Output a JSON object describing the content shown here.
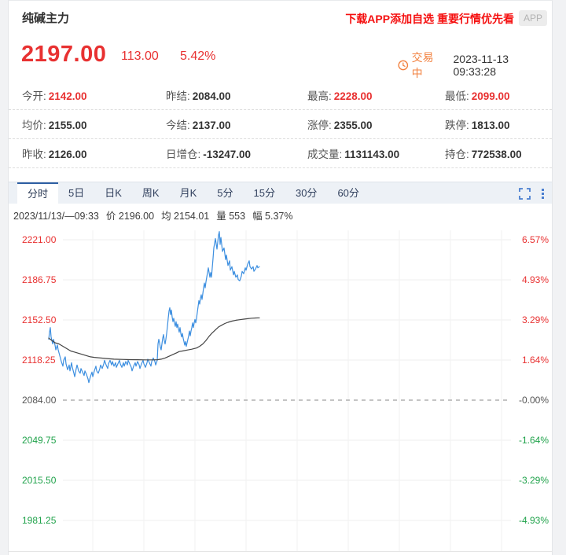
{
  "colors": {
    "up": "#e83131",
    "down": "#1fa24a",
    "neutral": "#555",
    "orange": "#f2813f",
    "promo_red": "#f50f0f",
    "tab_blue": "#2e5fa3",
    "icon_blue": "#4a7fd0",
    "line_blue": "#3d8fe0",
    "line_avg": "#444"
  },
  "header": {
    "title": "纯碱主力",
    "promo": "下载APP添加自选 重要行情优先看",
    "app_badge": "APP"
  },
  "quote": {
    "price": "2197.00",
    "change": "113.00",
    "change_pct": "5.42%",
    "status": "交易中",
    "datetime": "2023-11-13 09:33:28"
  },
  "stats": {
    "rows": [
      [
        {
          "label": "今开:",
          "value": "2142.00",
          "red": true
        },
        {
          "label": "昨结:",
          "value": "2084.00",
          "red": false
        },
        {
          "label": "最高:",
          "value": "2228.00",
          "red": true
        },
        {
          "label": "最低:",
          "value": "2099.00",
          "red": true
        }
      ],
      [
        {
          "label": "均价:",
          "value": "2155.00",
          "red": false
        },
        {
          "label": "今结:",
          "value": "2137.00",
          "red": false
        },
        {
          "label": "涨停:",
          "value": "2355.00",
          "red": false
        },
        {
          "label": "跌停:",
          "value": "1813.00",
          "red": false
        }
      ],
      [
        {
          "label": "昨收:",
          "value": "2126.00",
          "red": false
        },
        {
          "label": "日增仓:",
          "value": "-13247.00",
          "red": false
        },
        {
          "label": "成交量:",
          "value": "1131143.00",
          "red": false
        },
        {
          "label": "持仓:",
          "value": "772538.00",
          "red": false
        }
      ]
    ]
  },
  "tabs": {
    "items": [
      "分时",
      "5日",
      "日K",
      "周K",
      "月K",
      "5分",
      "15分",
      "30分",
      "60分"
    ],
    "active_index": 0
  },
  "info_line": {
    "segments": [
      "2023/11/13/—09:33",
      "价 2196.00",
      "均 2154.01",
      "量 553",
      "幅 5.37%"
    ]
  },
  "chart_data": {
    "type": "line",
    "description": "纯碱主力 分时走势图 (intraday price and average lines)",
    "x_axis": "time (night + morning session, up to 09:33)",
    "y_left_ticks": [
      "2221.00",
      "2186.75",
      "2152.50",
      "2118.25",
      "2084.00",
      "2049.75",
      "2015.50",
      "1981.25"
    ],
    "y_left_values": [
      2221.0,
      2186.75,
      2152.5,
      2118.25,
      2084.0,
      2049.75,
      2015.5,
      1981.25
    ],
    "y_right_ticks": [
      "6.57%",
      "4.93%",
      "3.29%",
      "1.64%",
      "-0.00%",
      "-1.64%",
      "-3.29%",
      "-4.93%"
    ],
    "tick_colors": [
      "up",
      "up",
      "up",
      "up",
      "neutral",
      "down",
      "down",
      "down"
    ],
    "baseline_value": 2084.0,
    "grid": true,
    "legend_position": "none",
    "series": [
      {
        "name": "price",
        "color_key": "line_blue",
        "points": [
          [
            62,
            2136
          ],
          [
            63,
            2142
          ],
          [
            64,
            2146
          ],
          [
            65,
            2138
          ],
          [
            67,
            2132
          ],
          [
            68,
            2136
          ],
          [
            70,
            2131
          ],
          [
            71,
            2127
          ],
          [
            73,
            2131
          ],
          [
            74,
            2127
          ],
          [
            76,
            2122
          ],
          [
            78,
            2117
          ],
          [
            80,
            2113
          ],
          [
            81,
            2118
          ],
          [
            83,
            2121
          ],
          [
            84,
            2115
          ],
          [
            86,
            2110
          ],
          [
            88,
            2114
          ],
          [
            89,
            2109
          ],
          [
            91,
            2116
          ],
          [
            92,
            2112
          ],
          [
            94,
            2107
          ],
          [
            95,
            2104
          ],
          [
            97,
            2111
          ],
          [
            98,
            2114
          ],
          [
            100,
            2109
          ],
          [
            102,
            2107
          ],
          [
            103,
            2111
          ],
          [
            105,
            2108
          ],
          [
            107,
            2105
          ],
          [
            108,
            2109
          ],
          [
            110,
            2106
          ],
          [
            112,
            2102
          ],
          [
            113,
            2099
          ],
          [
            115,
            2104
          ],
          [
            117,
            2108
          ],
          [
            118,
            2104
          ],
          [
            120,
            2109
          ],
          [
            122,
            2113
          ],
          [
            123,
            2109
          ],
          [
            125,
            2107
          ],
          [
            127,
            2111
          ],
          [
            128,
            2114
          ],
          [
            130,
            2111
          ],
          [
            132,
            2115
          ],
          [
            133,
            2118
          ],
          [
            135,
            2114
          ],
          [
            137,
            2111
          ],
          [
            138,
            2115
          ],
          [
            140,
            2118
          ],
          [
            142,
            2114
          ],
          [
            143,
            2117
          ],
          [
            145,
            2113
          ],
          [
            147,
            2116
          ],
          [
            148,
            2112
          ],
          [
            150,
            2115
          ],
          [
            152,
            2118
          ],
          [
            153,
            2115
          ],
          [
            155,
            2112
          ],
          [
            157,
            2116
          ],
          [
            158,
            2113
          ],
          [
            160,
            2117
          ],
          [
            162,
            2114
          ],
          [
            163,
            2118
          ],
          [
            165,
            2115
          ],
          [
            167,
            2112
          ],
          [
            168,
            2109
          ],
          [
            170,
            2113
          ],
          [
            172,
            2116
          ],
          [
            173,
            2113
          ],
          [
            175,
            2117
          ],
          [
            177,
            2114
          ],
          [
            178,
            2111
          ],
          [
            180,
            2115
          ],
          [
            182,
            2118
          ],
          [
            183,
            2115
          ],
          [
            185,
            2112
          ],
          [
            187,
            2116
          ],
          [
            188,
            2119
          ],
          [
            190,
            2116
          ],
          [
            192,
            2113
          ],
          [
            193,
            2117
          ],
          [
            195,
            2120
          ],
          [
            197,
            2117
          ],
          [
            198,
            2114
          ],
          [
            200,
            2118
          ],
          [
            201,
            2132
          ],
          [
            202,
            2136
          ],
          [
            203,
            2133
          ],
          [
            204,
            2129
          ],
          [
            205,
            2127
          ],
          [
            206,
            2132
          ],
          [
            207,
            2137
          ],
          [
            208,
            2140
          ],
          [
            209,
            2135
          ],
          [
            210,
            2132
          ],
          [
            211,
            2136
          ],
          [
            212,
            2141
          ],
          [
            213,
            2147
          ],
          [
            214,
            2154
          ],
          [
            215,
            2160
          ],
          [
            216,
            2163
          ],
          [
            217,
            2157
          ],
          [
            218,
            2161
          ],
          [
            219,
            2155
          ],
          [
            220,
            2151
          ],
          [
            221,
            2154
          ],
          [
            222,
            2150
          ],
          [
            223,
            2147
          ],
          [
            224,
            2151
          ],
          [
            225,
            2146
          ],
          [
            226,
            2149
          ],
          [
            227,
            2145
          ],
          [
            228,
            2142
          ],
          [
            229,
            2146
          ],
          [
            230,
            2141
          ],
          [
            231,
            2138
          ],
          [
            232,
            2141
          ],
          [
            233,
            2137
          ],
          [
            234,
            2134
          ],
          [
            235,
            2131
          ],
          [
            236,
            2134
          ],
          [
            237,
            2130
          ],
          [
            238,
            2133
          ],
          [
            239,
            2136
          ],
          [
            240,
            2139
          ],
          [
            241,
            2143
          ],
          [
            242,
            2139
          ],
          [
            243,
            2143
          ],
          [
            244,
            2146
          ],
          [
            245,
            2150
          ],
          [
            246,
            2146
          ],
          [
            247,
            2150
          ],
          [
            248,
            2153
          ],
          [
            249,
            2150
          ],
          [
            250,
            2154
          ],
          [
            251,
            2159
          ],
          [
            252,
            2164
          ],
          [
            253,
            2169
          ],
          [
            254,
            2166
          ],
          [
            255,
            2171
          ],
          [
            256,
            2174
          ],
          [
            257,
            2170
          ],
          [
            258,
            2175
          ],
          [
            259,
            2180
          ],
          [
            260,
            2184
          ],
          [
            261,
            2180
          ],
          [
            262,
            2185
          ],
          [
            263,
            2189
          ],
          [
            264,
            2193
          ],
          [
            265,
            2197
          ],
          [
            266,
            2193
          ],
          [
            267,
            2189
          ],
          [
            268,
            2193
          ],
          [
            269,
            2189
          ],
          [
            270,
            2197
          ],
          [
            271,
            2205
          ],
          [
            272,
            2214
          ],
          [
            274,
            2222
          ],
          [
            276,
            2213
          ],
          [
            278,
            2225
          ],
          [
            279,
            2228
          ],
          [
            280,
            2217
          ],
          [
            281,
            2223
          ],
          [
            283,
            2211
          ],
          [
            285,
            2214
          ],
          [
            287,
            2204
          ],
          [
            288,
            2208
          ],
          [
            290,
            2199
          ],
          [
            292,
            2203
          ],
          [
            293,
            2195
          ],
          [
            295,
            2198
          ],
          [
            297,
            2191
          ],
          [
            298,
            2194
          ],
          [
            300,
            2189
          ],
          [
            302,
            2191
          ],
          [
            303,
            2187
          ],
          [
            305,
            2186
          ],
          [
            307,
            2190
          ],
          [
            308,
            2194
          ],
          [
            310,
            2192
          ],
          [
            312,
            2197
          ],
          [
            313,
            2195
          ],
          [
            315,
            2200
          ],
          [
            317,
            2203
          ],
          [
            318,
            2198
          ],
          [
            320,
            2196
          ],
          [
            322,
            2198
          ],
          [
            323,
            2194
          ],
          [
            325,
            2196
          ],
          [
            327,
            2199
          ],
          [
            328,
            2197
          ],
          [
            330,
            2198
          ]
        ]
      },
      {
        "name": "average",
        "color_key": "line_avg",
        "points": [
          [
            62,
            2137
          ],
          [
            66,
            2135
          ],
          [
            70,
            2133
          ],
          [
            75,
            2132
          ],
          [
            80,
            2130
          ],
          [
            85,
            2128
          ],
          [
            90,
            2126
          ],
          [
            95,
            2125
          ],
          [
            100,
            2124
          ],
          [
            105,
            2123
          ],
          [
            110,
            2122
          ],
          [
            115,
            2121
          ],
          [
            120,
            2120.5
          ],
          [
            128,
            2120
          ],
          [
            136,
            2119.5
          ],
          [
            145,
            2119
          ],
          [
            155,
            2118.8
          ],
          [
            165,
            2118.6
          ],
          [
            175,
            2118.5
          ],
          [
            185,
            2118.4
          ],
          [
            195,
            2118.4
          ],
          [
            200,
            2118.5
          ],
          [
            205,
            2119
          ],
          [
            210,
            2120
          ],
          [
            215,
            2121.5
          ],
          [
            220,
            2123
          ],
          [
            225,
            2124.5
          ],
          [
            228,
            2125.5
          ],
          [
            232,
            2126
          ],
          [
            238,
            2126.8
          ],
          [
            244,
            2127.5
          ],
          [
            250,
            2128.5
          ],
          [
            254,
            2130
          ],
          [
            258,
            2132
          ],
          [
            262,
            2135
          ],
          [
            266,
            2138.5
          ],
          [
            270,
            2141.5
          ],
          [
            274,
            2144
          ],
          [
            278,
            2146.5
          ],
          [
            282,
            2148
          ],
          [
            286,
            2149.5
          ],
          [
            290,
            2150.5
          ],
          [
            295,
            2151.5
          ],
          [
            300,
            2152.2
          ],
          [
            305,
            2152.7
          ],
          [
            310,
            2153.2
          ],
          [
            315,
            2153.6
          ],
          [
            320,
            2154
          ],
          [
            325,
            2154.2
          ],
          [
            330,
            2154.3
          ]
        ]
      }
    ]
  }
}
